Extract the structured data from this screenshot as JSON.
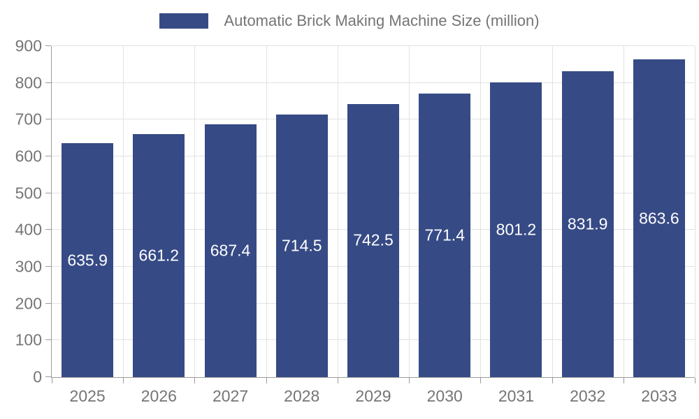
{
  "legend": {
    "label": "Automatic Brick Making Machine Size (million)"
  },
  "chart_data": {
    "type": "bar",
    "title": "",
    "series_name": "Automatic Brick Making Machine Size (million)",
    "categories": [
      "2025",
      "2026",
      "2027",
      "2028",
      "2029",
      "2030",
      "2031",
      "2032",
      "2033"
    ],
    "values": [
      635.9,
      661.2,
      687.4,
      714.5,
      742.5,
      771.4,
      801.2,
      831.9,
      863.6
    ],
    "value_labels": [
      "635.9",
      "661.2",
      "687.4",
      "714.5",
      "742.5",
      "771.4",
      "801.2",
      "831.9",
      "863.6"
    ],
    "xlabel": "",
    "ylabel": "",
    "ylim": [
      0,
      900
    ],
    "yticks": [
      0,
      100,
      200,
      300,
      400,
      500,
      600,
      700,
      800,
      900
    ],
    "grid": true,
    "legend_position": "top-center",
    "colors": {
      "bar": "#364A85",
      "value_label": "#FFFFFF",
      "axis": "#9B9B9B",
      "gridline": "#E2E2E2",
      "tick_label": "#757575",
      "legend_text": "#757575",
      "background": "#FFFFFF"
    }
  }
}
